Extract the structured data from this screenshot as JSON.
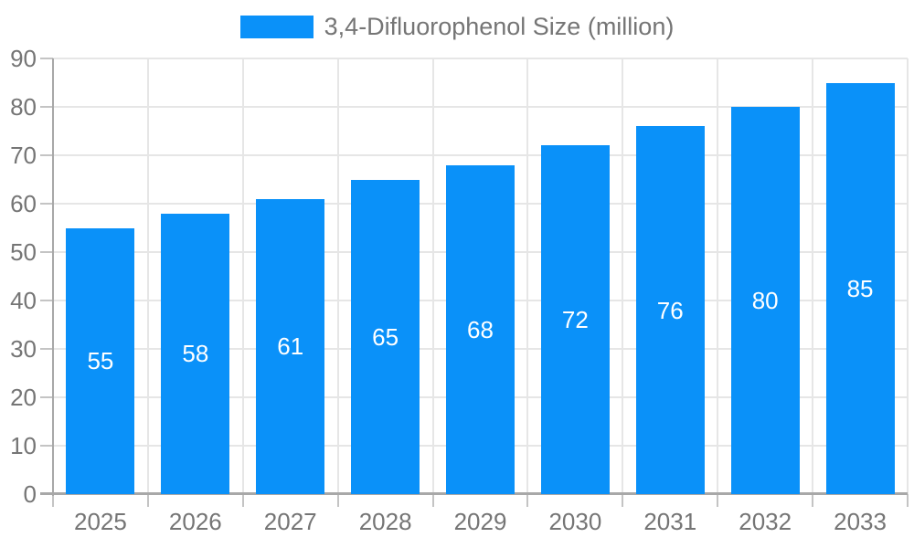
{
  "legend": {
    "label": "3,4-Difluorophenol Size (million)"
  },
  "chart_data": {
    "type": "bar",
    "title": "3,4-Difluorophenol Size (million)",
    "categories": [
      "2025",
      "2026",
      "2027",
      "2028",
      "2029",
      "2030",
      "2031",
      "2032",
      "2033"
    ],
    "values": [
      55,
      58,
      61,
      65,
      68,
      72,
      76,
      80,
      85
    ],
    "xlabel": "",
    "ylabel": "",
    "ylim": [
      0,
      90
    ],
    "yticks": [
      0,
      10,
      20,
      30,
      40,
      50,
      60,
      70,
      80,
      90
    ],
    "grid": true,
    "value_labels": "inside-center",
    "legend_position": "top-center",
    "colors": {
      "bar": "#0a91f9",
      "value_label": "#ffffff",
      "axis_line": "#a8a8a8",
      "tick": "#c4c4c4",
      "grid": "#e6e6e6",
      "text": "#757575",
      "background": "#ffffff"
    }
  }
}
